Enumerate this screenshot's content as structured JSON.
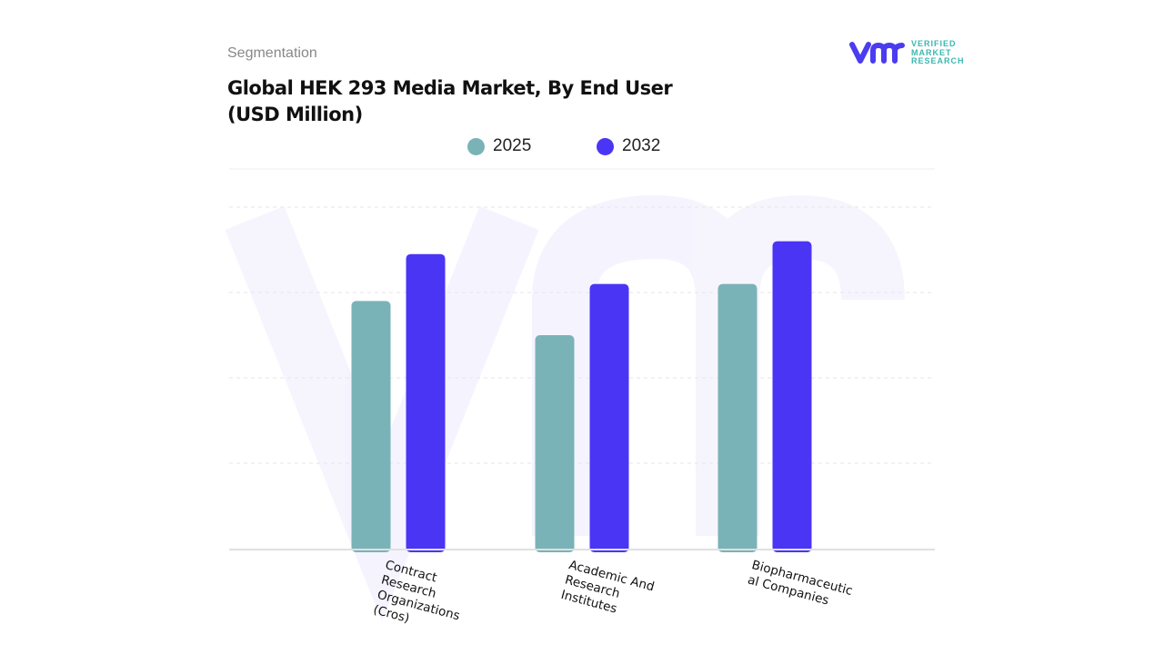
{
  "header": {
    "section": "Segmentation",
    "title_lines": [
      "Global HEK 293 Media Market, By End User",
      "(USD Million)"
    ]
  },
  "logo": {
    "lines": [
      "VERIFIED",
      "MARKET",
      "RESEARCH"
    ],
    "colors": {
      "mark": "#4b3cf0",
      "text": "#3bb8b0"
    }
  },
  "chart_data": {
    "type": "bar",
    "title": "Global HEK 293 Media Market, By End User (USD Million)",
    "categories": [
      "Contract Research Organizations (Cros)",
      "Academic And Research Institutes",
      "Biopharmaceutical Companies"
    ],
    "category_label_lines": [
      [
        "Contract",
        "Research",
        "Organizations",
        "(Cros)"
      ],
      [
        "Academic And",
        "Research",
        "Institutes"
      ],
      [
        "Biopharmaceutic",
        "al Companies"
      ]
    ],
    "series": [
      {
        "name": "2025",
        "color": "#7ab3b7",
        "values": [
          2.9,
          2.5,
          3.1
        ]
      },
      {
        "name": "2032",
        "color": "#4a35f5",
        "values": [
          3.45,
          3.1,
          3.6
        ]
      }
    ],
    "ylim": [
      0,
      4
    ],
    "y_tick_labels_shown": false,
    "grid": true,
    "legend_position": "top-center"
  }
}
